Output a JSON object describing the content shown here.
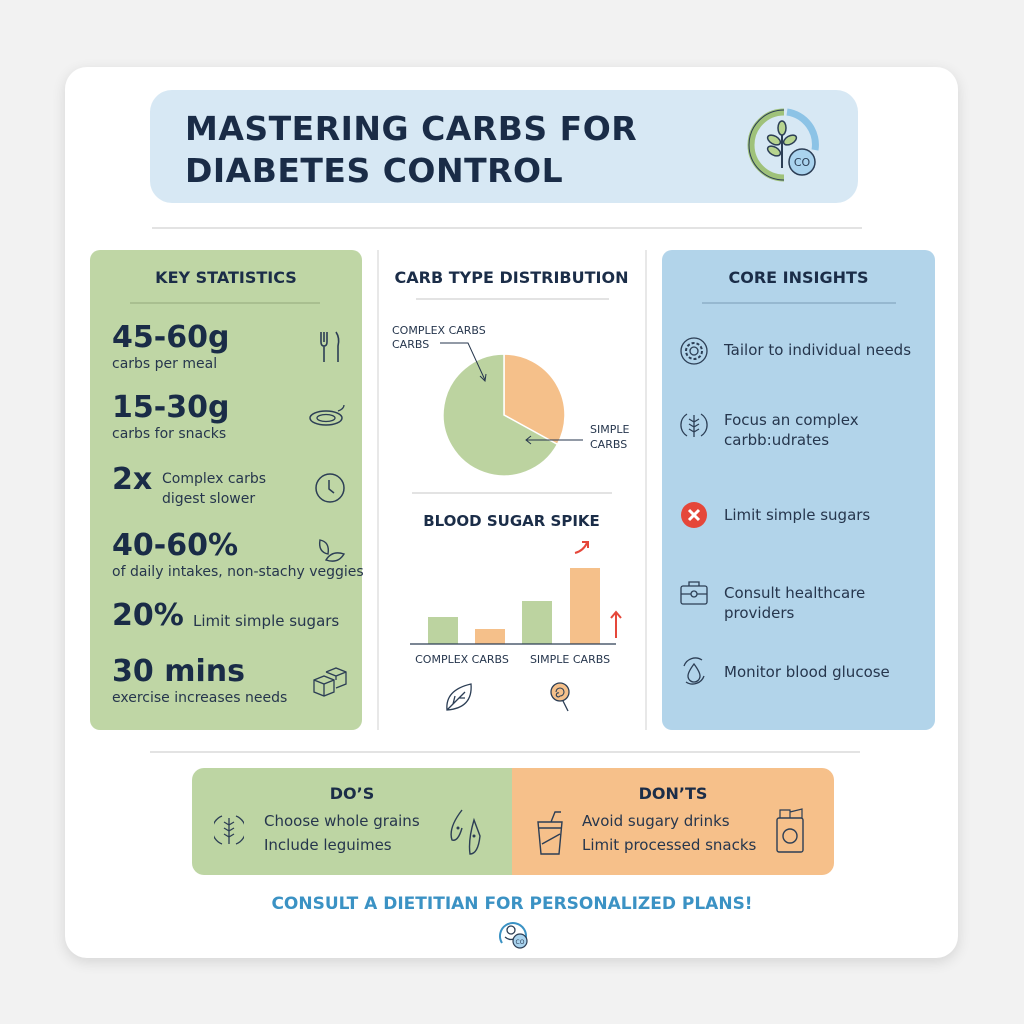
{
  "header": {
    "title_line1": "MASTERING CARBS FOR",
    "title_line2": "DIABETES CONTROL",
    "logo_text": "CO"
  },
  "key_statistics": {
    "heading": "KEY STATISTICS",
    "items": [
      {
        "value": "45-60g",
        "label": "carbs per meal",
        "icon": "fork-knife-icon"
      },
      {
        "value": "15-30g",
        "label": "carbs for snacks",
        "icon": "plate-icon"
      },
      {
        "value": "2x",
        "label_line1": "Complex carbs",
        "label_line2": "digest slower",
        "icon": "clock-icon"
      },
      {
        "value": "40-60%",
        "label": "of daily intakes, non-stachy veggies",
        "icon": "leaves-icon"
      },
      {
        "value": "20%",
        "label": "Limit simple sugars"
      },
      {
        "value": "30 mins",
        "label": "exercise increases needs",
        "icon": "cubes-icon"
      }
    ]
  },
  "chart_data": [
    {
      "type": "pie",
      "title": "CARB TYPE DISTRIBUTION",
      "slices": [
        {
          "label": "COMPLEX CARBS CARBS",
          "value": 67,
          "color": "#bcd3a0"
        },
        {
          "label": "SIMPLE CARBS",
          "value": 33,
          "color": "#f5c08a"
        }
      ]
    },
    {
      "type": "bar",
      "title": "BLOOD SUGAR SPIKE",
      "categories": [
        "COMPLEX CARBS",
        "SIMPLE CARBS"
      ],
      "series": [
        {
          "color": "#bcd3a0",
          "values": [
            27,
            43
          ]
        },
        {
          "color": "#f5c08a",
          "values": [
            15,
            76
          ]
        }
      ],
      "category_icons": [
        "leaf-icon",
        "lollipop-icon"
      ],
      "arrow_color": "#e5473a"
    }
  ],
  "core_insights": {
    "heading": "CORE INSIGHTS",
    "items": [
      {
        "text": "Tailor to individual needs",
        "icon": "gear-icon"
      },
      {
        "text_line1": "Focus an complex",
        "text_line2": "carbb:udrates",
        "icon": "wheat-icon"
      },
      {
        "text": "Limit simple sugars",
        "icon": "x-circle-icon"
      },
      {
        "text": "Consult healthcare providers",
        "icon": "medical-bag-icon"
      },
      {
        "text": "Monitor blood glucose",
        "icon": "drop-cycle-icon"
      }
    ]
  },
  "dos": {
    "heading": "DO’S",
    "items": [
      "Choose whole grains",
      "Include leguimes"
    ]
  },
  "donts": {
    "heading": "DON’TS",
    "items": [
      "Avoid sugary drinks",
      "Limit processed snacks"
    ]
  },
  "footer": {
    "text": "CONSULT A DIETITIAN FOR PERSONALIZED PLANS!",
    "icon_text": "CO"
  },
  "colors": {
    "green": "#bfd6a5",
    "blue": "#b2d4ea",
    "orange": "#f6c08a",
    "navy": "#1a2c47",
    "accent_blue": "#3b92c4",
    "red": "#e5473a"
  }
}
